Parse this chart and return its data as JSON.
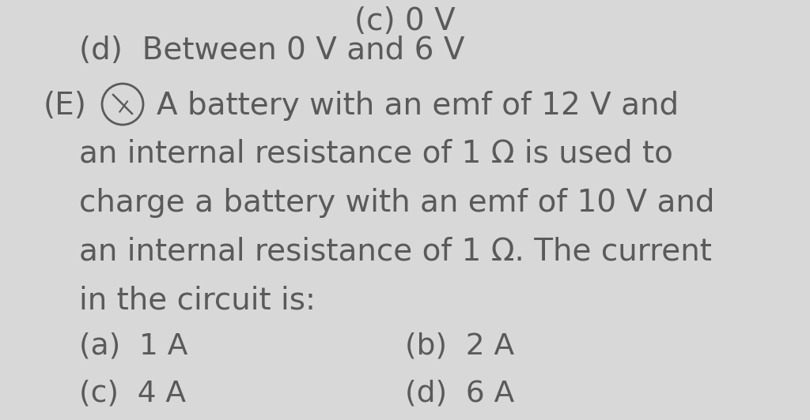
{
  "background_color": "#d8d8d8",
  "text_color": "#5a5a5a",
  "font_family": "DejaVu Sans",
  "line_c_partial": "(c) 0 V",
  "line_d": "(d)  Between 0 V and 6 V",
  "line_E_prefix": "(E)",
  "question_line1": "A battery with an emf of 12 V and",
  "question_line2": "an internal resistance of 1 Ω is used to",
  "question_line3": "charge a battery with an emf of 10 V and",
  "question_line4": "an internal resistance of 1 Ω. The current",
  "question_line5": "in the circuit is:",
  "opt_a": "(a)  1 A",
  "opt_b": "(b)  2 A",
  "opt_c": "(c)  4 A",
  "opt_d": "(d)  6 A",
  "font_size_main": 28,
  "font_size_options": 27
}
